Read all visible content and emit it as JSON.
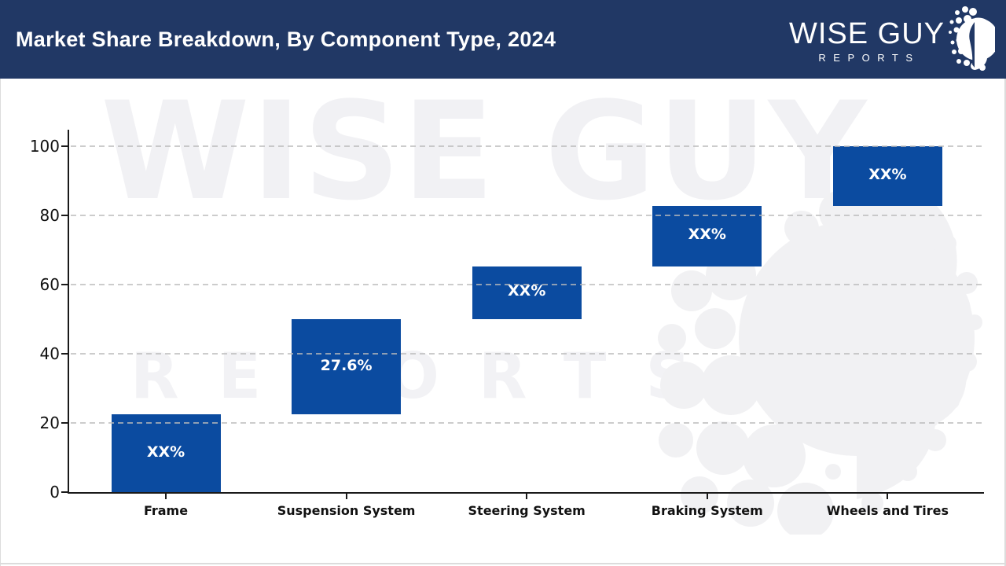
{
  "header": {
    "title": "Market Share Breakdown, By Component Type, 2024",
    "logo": {
      "line1": "WISE GUY",
      "line2": "REPORTS"
    }
  },
  "watermark": {
    "line1": "WISE GUY",
    "line2": "REPORTS"
  },
  "chart_data": {
    "type": "bar",
    "subtype": "waterfall",
    "title": "Market Share Breakdown, By Component Type, 2024",
    "xlabel": "",
    "ylabel": "",
    "categories": [
      "Frame",
      "Suspension System",
      "Steering System",
      "Braking System",
      "Wheels and Tires"
    ],
    "segments": [
      {
        "category": "Frame",
        "start": 0,
        "end": 22.4,
        "label": "XX%"
      },
      {
        "category": "Suspension System",
        "start": 22.4,
        "end": 50.0,
        "label": "27.6%"
      },
      {
        "category": "Steering System",
        "start": 50.0,
        "end": 65.2,
        "label": "XX%"
      },
      {
        "category": "Braking System",
        "start": 65.2,
        "end": 82.7,
        "label": "XX%"
      },
      {
        "category": "Wheels and Tires",
        "start": 82.7,
        "end": 100.0,
        "label": "XX%"
      }
    ],
    "y_ticks": [
      0,
      20,
      40,
      60,
      80,
      100
    ],
    "ylim": [
      0,
      104.7
    ],
    "grid": "horizontal-dashed",
    "legend": "none"
  },
  "colors": {
    "header_bg": "#213865",
    "bar_blue": "#0b4ba0",
    "bar_label": "#ffffff",
    "axis": "#1a1a1a",
    "grid": "#bbbbbb",
    "watermark": "#f1f1f4",
    "border": "#dcdcdc"
  }
}
